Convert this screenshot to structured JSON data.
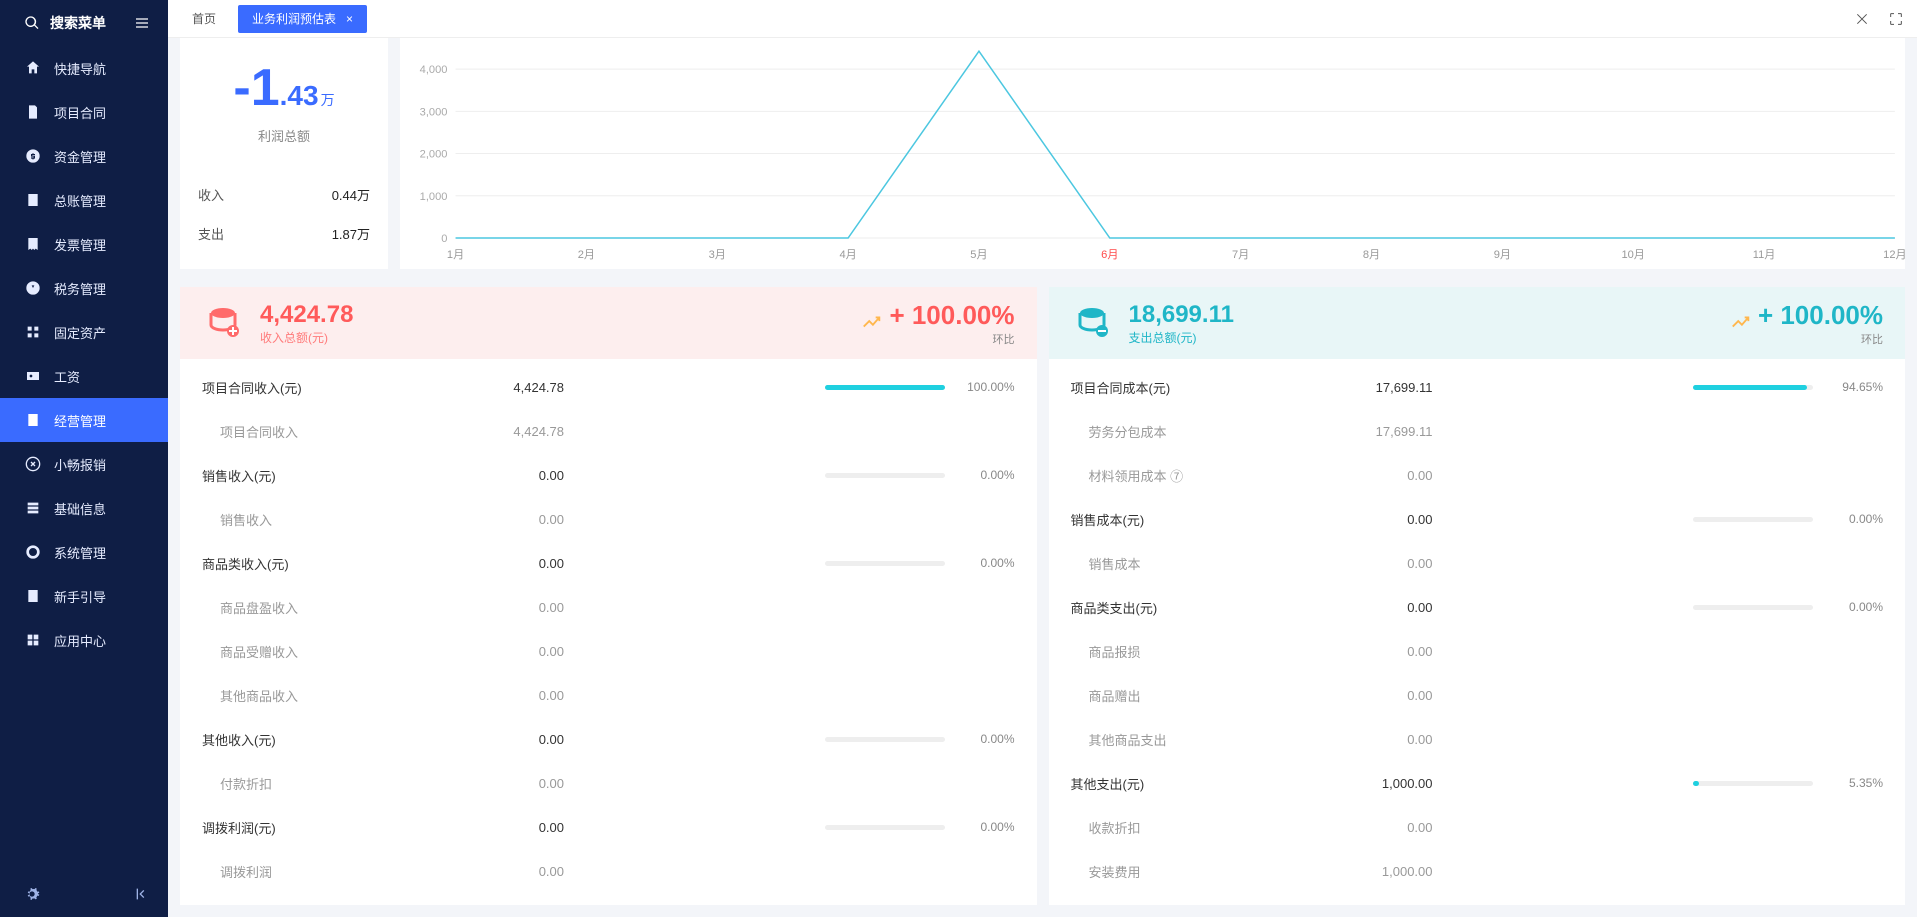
{
  "sidebar": {
    "search_label": "搜索菜单",
    "items": [
      {
        "key": "nav",
        "label": "快捷导航"
      },
      {
        "key": "contract",
        "label": "项目合同"
      },
      {
        "key": "fund",
        "label": "资金管理"
      },
      {
        "key": "ledger",
        "label": "总账管理"
      },
      {
        "key": "invoice",
        "label": "发票管理"
      },
      {
        "key": "tax",
        "label": "税务管理"
      },
      {
        "key": "asset",
        "label": "固定资产"
      },
      {
        "key": "salary",
        "label": "工资"
      },
      {
        "key": "operate",
        "label": "经营管理",
        "active": true
      },
      {
        "key": "expense",
        "label": "小畅报销"
      },
      {
        "key": "base",
        "label": "基础信息"
      },
      {
        "key": "system",
        "label": "系统管理"
      },
      {
        "key": "guide",
        "label": "新手引导"
      },
      {
        "key": "app",
        "label": "应用中心"
      }
    ]
  },
  "tabs": {
    "home": "首页",
    "active": "业务利润预估表"
  },
  "profit_card": {
    "big": "-1",
    "dec": ".43",
    "unit": "万",
    "label": "利润总额",
    "rows": [
      {
        "l": "收入",
        "r": "0.44万"
      },
      {
        "l": "支出",
        "r": "1.87万"
      }
    ]
  },
  "line_chart": {
    "type": "line",
    "months": [
      "1月",
      "2月",
      "3月",
      "4月",
      "5月",
      "6月",
      "7月",
      "8月",
      "9月",
      "10月",
      "11月",
      "12月"
    ],
    "highlight_month_index": 5,
    "values": [
      0,
      0,
      0,
      0,
      4424.78,
      0,
      0,
      0,
      0,
      0,
      0,
      0
    ],
    "ymin": 0,
    "ymax": 4500,
    "yticks": [
      0,
      1000,
      2000,
      3000,
      4000
    ],
    "line_color": "#4cc7e0",
    "grid_color": "#eeeeee",
    "axis_label_color": "#aaaaaa",
    "xlabel_color": "#999999",
    "xlabel_highlight_color": "#ff4a4a",
    "background": "#ffffff"
  },
  "income_panel": {
    "header_bg": "#fdeeee",
    "icon_color": "#ff5a5a",
    "value": "4,424.78",
    "value_label": "收入总额(元)",
    "trend_label": "环比",
    "trend_value": "+ 100.00%",
    "rows": [
      {
        "label": "项目合同收入(元)",
        "value": "4,424.78",
        "pct": "100.00%",
        "fill": 100
      },
      {
        "label": "项目合同收入",
        "value": "4,424.78",
        "sub": true
      },
      {
        "label": "销售收入(元)",
        "value": "0.00",
        "pct": "0.00%",
        "fill": 0
      },
      {
        "label": "销售收入",
        "value": "0.00",
        "sub": true
      },
      {
        "label": "商品类收入(元)",
        "value": "0.00",
        "pct": "0.00%",
        "fill": 0
      },
      {
        "label": "商品盘盈收入",
        "value": "0.00",
        "sub": true
      },
      {
        "label": "商品受赠收入",
        "value": "0.00",
        "sub": true
      },
      {
        "label": "其他商品收入",
        "value": "0.00",
        "sub": true
      },
      {
        "label": "其他收入(元)",
        "value": "0.00",
        "pct": "0.00%",
        "fill": 0
      },
      {
        "label": "付款折扣",
        "value": "0.00",
        "sub": true
      },
      {
        "label": "调拨利润(元)",
        "value": "0.00",
        "pct": "0.00%",
        "fill": 0
      },
      {
        "label": "调拨利润",
        "value": "0.00",
        "sub": true
      }
    ]
  },
  "expense_panel": {
    "header_bg": "#e8f6f7",
    "icon_color": "#1fb6c7",
    "value": "18,699.11",
    "value_label": "支出总额(元)",
    "trend_label": "环比",
    "trend_value": "+ 100.00%",
    "rows": [
      {
        "label": "项目合同成本(元)",
        "value": "17,699.11",
        "pct": "94.65%",
        "fill": 94.65
      },
      {
        "label": "劳务分包成本",
        "value": "17,699.11",
        "sub": true
      },
      {
        "label": "材料领用成本 ⑦",
        "value": "0.00",
        "sub": true
      },
      {
        "label": "销售成本(元)",
        "value": "0.00",
        "pct": "0.00%",
        "fill": 0
      },
      {
        "label": "销售成本",
        "value": "0.00",
        "sub": true
      },
      {
        "label": "商品类支出(元)",
        "value": "0.00",
        "pct": "0.00%",
        "fill": 0
      },
      {
        "label": "商品报损",
        "value": "0.00",
        "sub": true
      },
      {
        "label": "商品赠出",
        "value": "0.00",
        "sub": true
      },
      {
        "label": "其他商品支出",
        "value": "0.00",
        "sub": true
      },
      {
        "label": "其他支出(元)",
        "value": "1,000.00",
        "pct": "5.35%",
        "fill": 5.35
      },
      {
        "label": "收款折扣",
        "value": "0.00",
        "sub": true
      },
      {
        "label": "安装费用",
        "value": "1,000.00",
        "sub": true
      }
    ]
  },
  "colors": {
    "sidebar_bg": "#0f1e45",
    "accent": "#3a6bff",
    "income_accent": "#ff5a5a",
    "expense_accent": "#1fb6c7",
    "bar_fill": "#1fd0e0",
    "bar_track": "#eeeeee"
  }
}
